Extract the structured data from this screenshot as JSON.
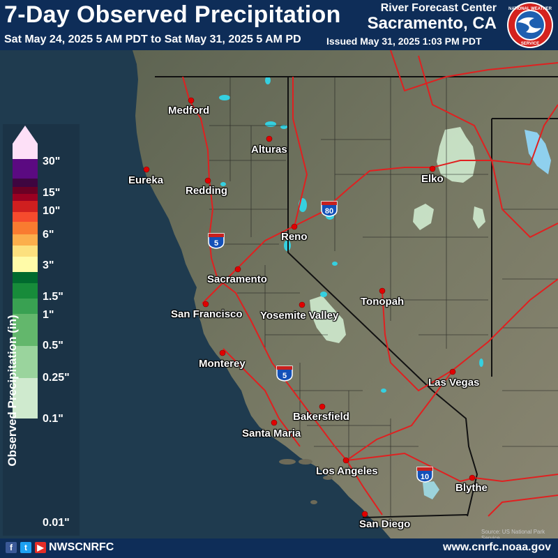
{
  "header": {
    "title": "7-Day Observed Precipitation",
    "period": "Sat May 24, 2025 5 AM PDT to Sat May 31, 2025 5 AM PD",
    "issued": "Issued May 31, 2025 1:03 PM PDT",
    "office_line1": "River Forecast Center",
    "office_line2": "Sacramento, CA",
    "logo": "National Weather Service logo"
  },
  "legend": {
    "title": "Observed Precipitation (in)",
    "labels": [
      "30\"",
      "15\"",
      "10\"",
      "6\"",
      "3\"",
      "1.5\"",
      "1\"",
      "0.5\"",
      "0.25\"",
      "0.1\"",
      "0.01\""
    ],
    "colors": [
      "#fde0f7",
      "#5b0a81",
      "#3e0640",
      "#6b0024",
      "#9b0021",
      "#cf1f1f",
      "#f64b2d",
      "#f97b30",
      "#fbae4c",
      "#fce07e",
      "#fffba8",
      "#006a2e",
      "#178b3a",
      "#39a152",
      "#63b76c",
      "#9ad49d",
      "#cfeace"
    ]
  },
  "cities": [
    "Medford",
    "Eureka",
    "Redding",
    "Alturas",
    "Reno",
    "Elko",
    "Sacramento",
    "San Francisco",
    "Yosemite Valley",
    "Tonopah",
    "Monterey",
    "Las Vegas",
    "Bakersfield",
    "Santa Maria",
    "Los Angeles",
    "Blythe",
    "San Diego"
  ],
  "highways": [
    "5",
    "80",
    "5",
    "10"
  ],
  "source": "Source: US National Park Service",
  "footer": {
    "icons": [
      "facebook-icon",
      "twitter-icon",
      "youtube-icon"
    ],
    "handle": "NWSCNRFC",
    "website": "www.cnrfc.noaa.gov"
  },
  "colors": {
    "header_bg": "#0e2d58",
    "ocean": "#1f3b4f",
    "land": "#6b6f58",
    "roads": "#e02020",
    "precip_light": "#cfeace",
    "lakes": "#35d0e0"
  }
}
